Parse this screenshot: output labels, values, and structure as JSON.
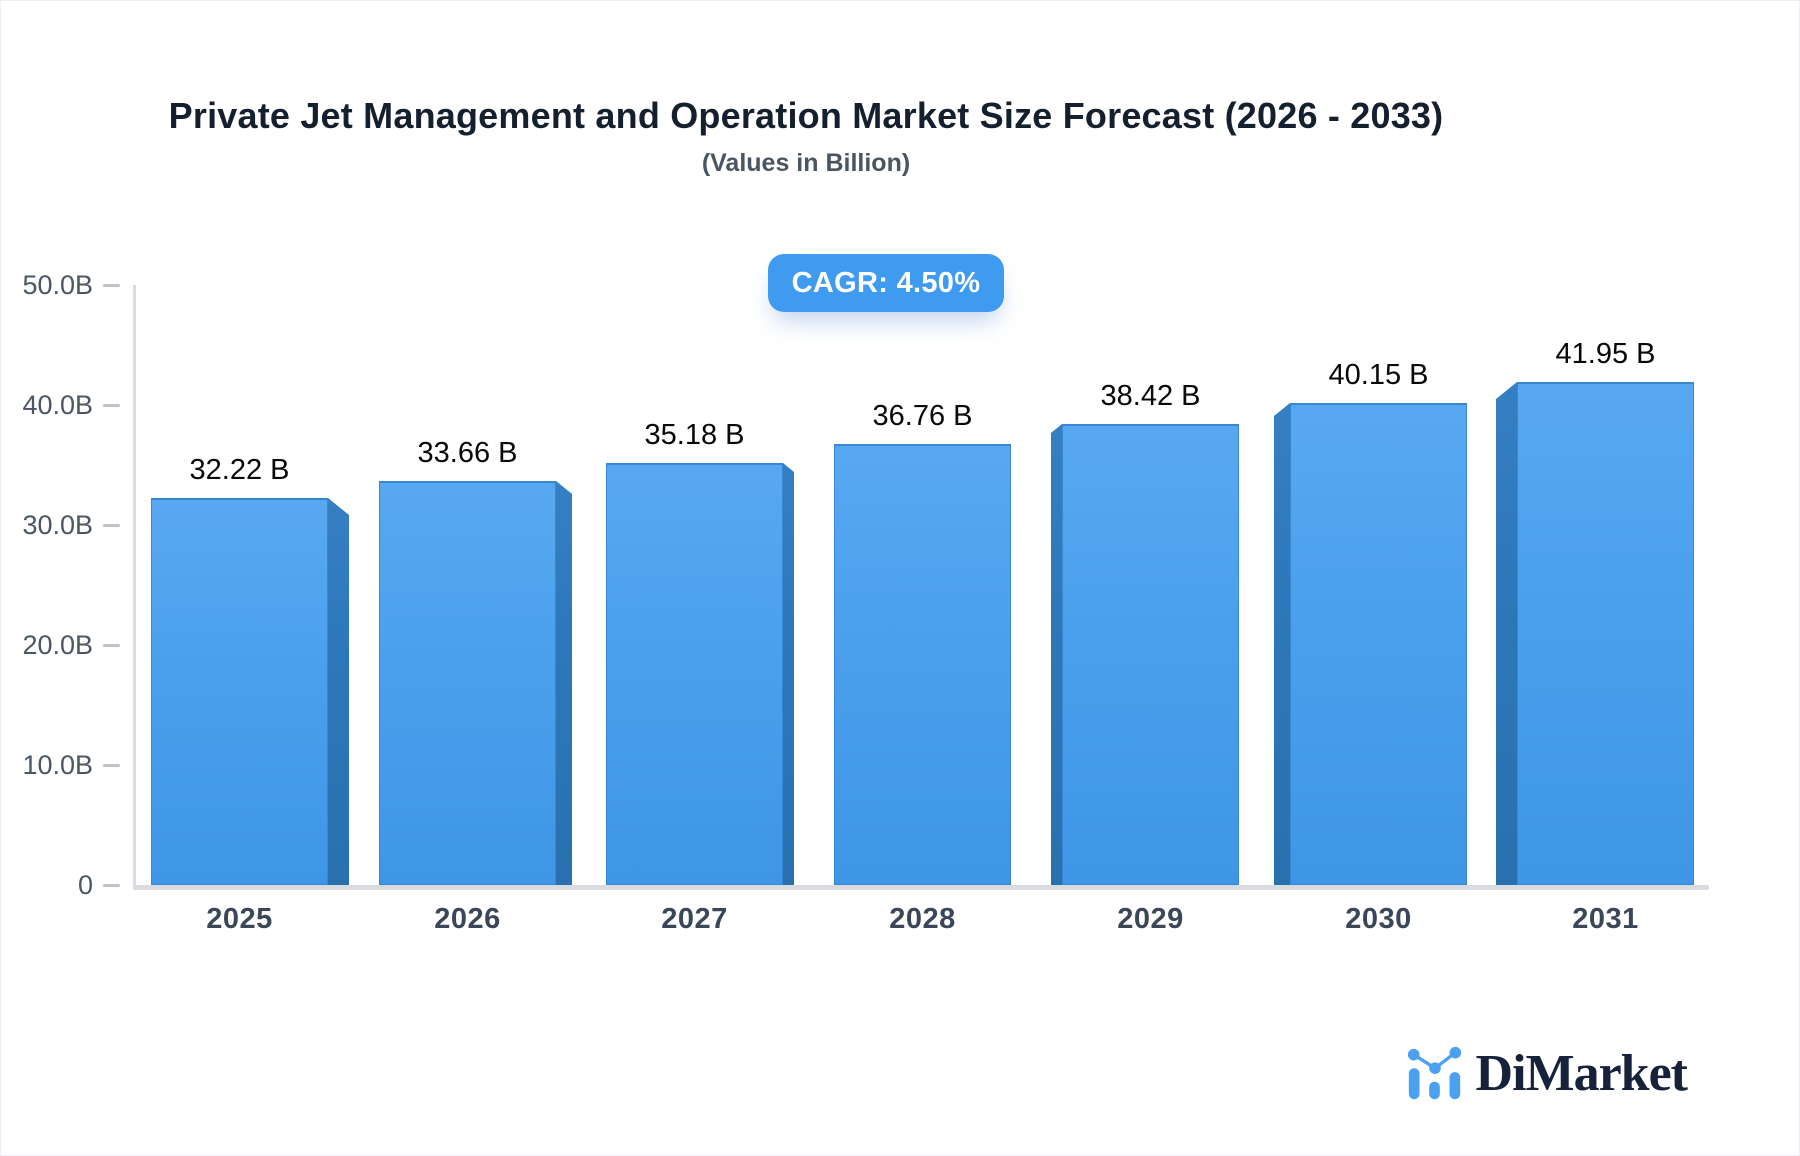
{
  "header": {
    "title": "Private Jet Management and Operation Market Size Forecast (2026 - 2033)",
    "subtitle": "(Values in Billion)"
  },
  "badge": {
    "label": "CAGR: 4.50%"
  },
  "chart_data": {
    "type": "bar",
    "title": "Private Jet Management and Operation Market Size Forecast (2026 - 2033)",
    "subtitle": "(Values in Billion)",
    "categories": [
      "2025",
      "2026",
      "2027",
      "2028",
      "2029",
      "2030",
      "2031"
    ],
    "values": [
      32.22,
      33.66,
      35.18,
      36.76,
      38.42,
      40.15,
      41.95
    ],
    "value_labels": [
      "32.22 B",
      "33.66 B",
      "35.18 B",
      "36.76 B",
      "38.42 B",
      "40.15 B",
      "41.95 B"
    ],
    "cagr_label": "CAGR: 4.50%",
    "ylim": [
      0,
      50
    ],
    "ytick_labels": [
      "50.0B",
      "40.0B",
      "30.0B",
      "20.0B",
      "10.0B",
      "0"
    ],
    "ytick_values": [
      50,
      40,
      30,
      20,
      10,
      0
    ],
    "grid": false,
    "legend": false,
    "bar_style": "3d-beveled",
    "bar_color": "#4aa0ec",
    "bar_side_color": "#2d78ba"
  },
  "logo": {
    "name": "DiMarket",
    "icon": "mini-bar-chart-icon"
  },
  "colors": {
    "accent_blue": "#3f9bef",
    "bar_blue": "#4aa0ec",
    "bar_side_blue": "#2d78ba",
    "axis_gray": "#d8dce1",
    "title_dark": "#15202e",
    "logo_navy": "#16223a"
  }
}
